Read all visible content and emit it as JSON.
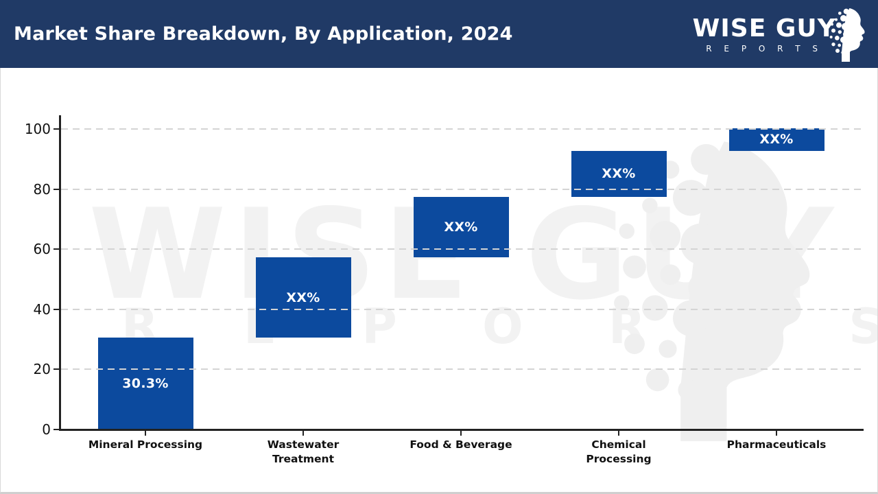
{
  "header": {
    "title": "Market Share Breakdown, By Application, 2024",
    "logo": {
      "line1": "WISE GUY",
      "line2": "R E P O R T S"
    }
  },
  "watermark": {
    "line1": "WISE GUY",
    "line2": "R E P O R T S"
  },
  "chart_data": {
    "type": "bar",
    "subtype": "waterfall",
    "title": "Market Share Breakdown, By Application, 2024",
    "categories": [
      "Mineral Processing",
      "Wastewater\nTreatment",
      "Food & Beverage",
      "Chemical\nProcessing",
      "Pharmaceuticals"
    ],
    "bars": [
      {
        "category": "Mineral Processing",
        "start": 0,
        "end": 30.3,
        "value": 30.3,
        "label": "30.3%"
      },
      {
        "category": "Wastewater Treatment",
        "start": 30.3,
        "end": 57.1,
        "value": 26.8,
        "label": "XX%"
      },
      {
        "category": "Food & Beverage",
        "start": 57.1,
        "end": 77.2,
        "value": 20.1,
        "label": "XX%"
      },
      {
        "category": "Chemical Processing",
        "start": 77.2,
        "end": 92.5,
        "value": 15.3,
        "label": "XX%"
      },
      {
        "category": "Pharmaceuticals",
        "start": 92.5,
        "end": 100,
        "value": 7.5,
        "label": "XX%"
      }
    ],
    "xlabel": "",
    "ylabel": "",
    "ylim": [
      0,
      100
    ],
    "yticks": [
      0,
      20,
      40,
      60,
      80,
      100
    ],
    "grid": "horizontal-dashed",
    "legend": "none",
    "bar_color": "#0c4a9e",
    "bar_label_color": "#ffffff"
  },
  "colors": {
    "header_bg": "#203a66",
    "bar": "#0c4a9e",
    "grid": "#d4d4d4",
    "axis": "#222222",
    "watermark": "#f2f2f2",
    "title_text": "#ffffff"
  }
}
